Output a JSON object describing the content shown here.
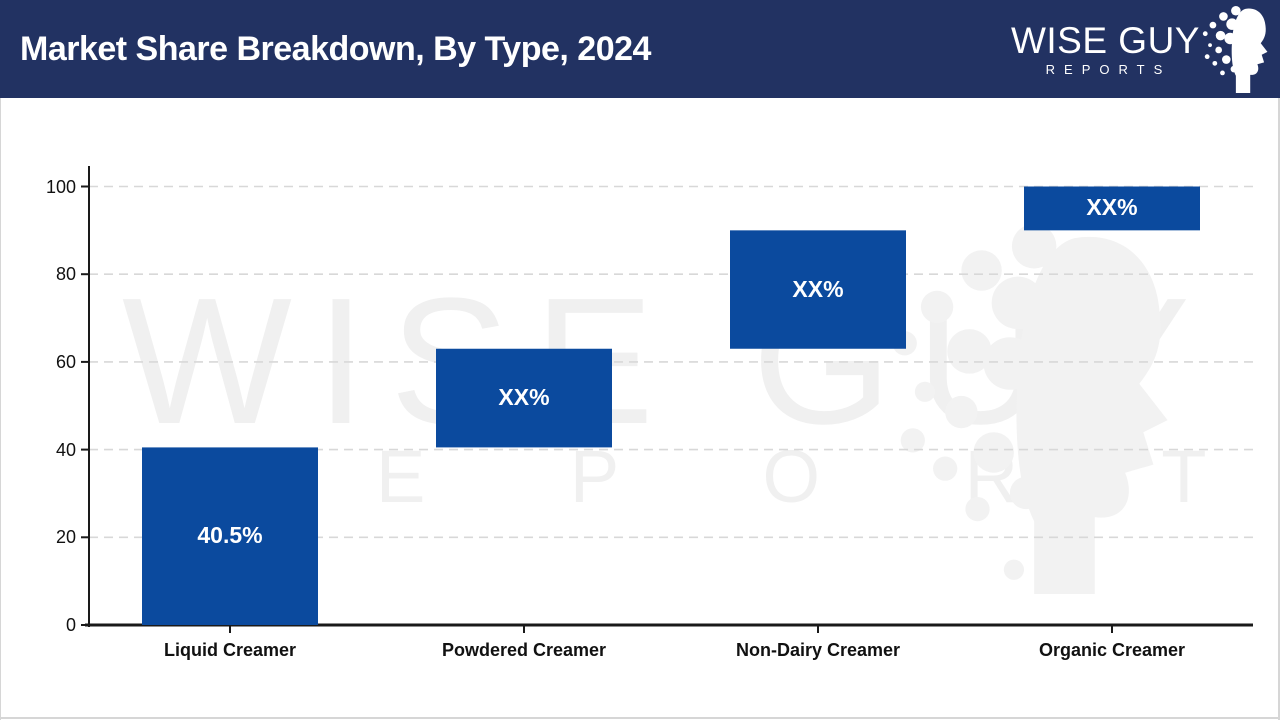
{
  "header": {
    "title": "Market Share Breakdown, By Type, 2024",
    "logo": {
      "line1": "WISE GUY",
      "line2": "REPORTS"
    }
  },
  "watermark": {
    "line1": "WISE GUY",
    "line2": "R E P O R T S"
  },
  "colors": {
    "header_bg": "#223262",
    "bar": "#0b4a9e",
    "bar_label": "#ffffff",
    "grid": "#d8d8d8",
    "axis": "#1a1a1a",
    "watermark": "#f0f0f0"
  },
  "chart_data": {
    "type": "bar",
    "subtype": "waterfall",
    "title": "Market Share Breakdown, By Type, 2024",
    "categories": [
      "Liquid Creamer",
      "Powdered Creamer",
      "Non-Dairy Creamer",
      "Organic Creamer"
    ],
    "segments": [
      {
        "category": "Liquid Creamer",
        "start": 0,
        "end": 40.5,
        "label": "40.5%"
      },
      {
        "category": "Powdered Creamer",
        "start": 40.5,
        "end": 63,
        "label": "XX%"
      },
      {
        "category": "Non-Dairy Creamer",
        "start": 63,
        "end": 90,
        "label": "XX%"
      },
      {
        "category": "Organic Creamer",
        "start": 90,
        "end": 100,
        "label": "XX%"
      }
    ],
    "yticks": [
      0,
      20,
      40,
      60,
      80,
      100
    ],
    "ylim": [
      0,
      104.5
    ],
    "xlabel": "",
    "ylabel": "",
    "grid": "horizontal dashed",
    "legend": "none"
  }
}
